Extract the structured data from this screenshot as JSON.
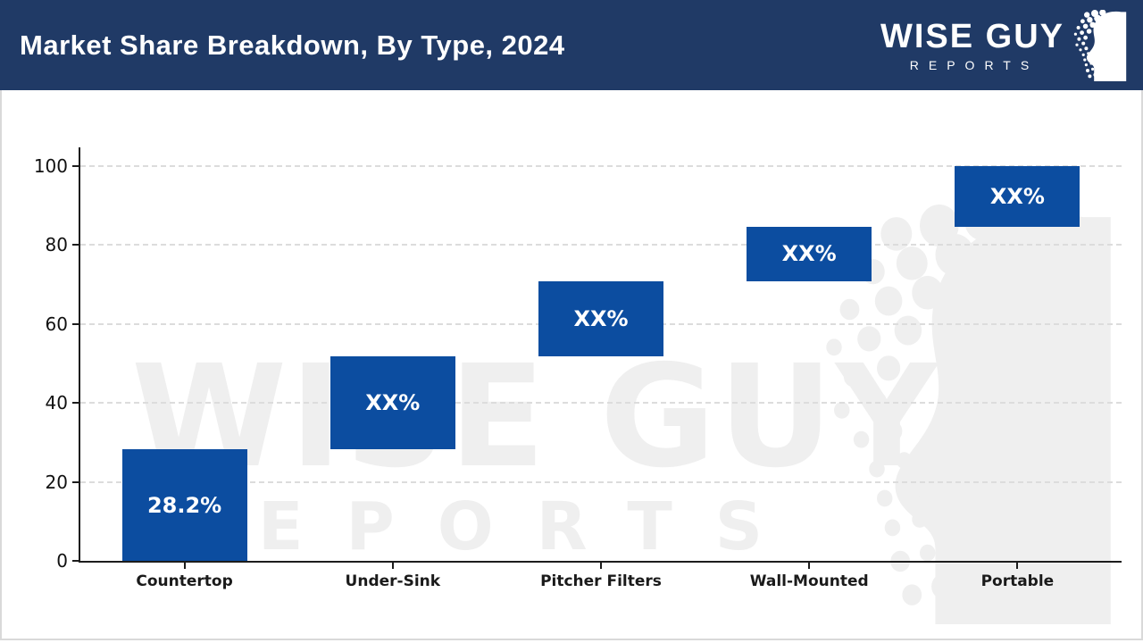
{
  "header": {
    "title": "Market Share Breakdown, By Type, 2024",
    "logo_line1": "WISE GUY",
    "logo_line2": "REPORTS"
  },
  "watermark": {
    "line1": "WISE GUY",
    "line2": "REPORTS"
  },
  "colors": {
    "header_bg": "#203a66",
    "bar": "#0c4da0",
    "axis": "#1c1c1c",
    "gridline": "#dcdcdc",
    "bar_label": "#ffffff",
    "category_label": "#1a1a1a",
    "watermark": "#efefef",
    "figure_border": "#d9d9d9"
  },
  "chart_data": {
    "type": "bar",
    "subtype": "waterfall",
    "title": "Market Share Breakdown, By Type, 2024",
    "xlabel": "",
    "ylabel": "",
    "categories": [
      "Countertop",
      "Under-Sink",
      "Pitcher Filters",
      "Wall-Mounted",
      "Portable"
    ],
    "series": [
      {
        "name": "Market Share",
        "segments": [
          [
            0,
            28.2
          ],
          [
            28.2,
            51.8
          ],
          [
            51.8,
            70.8
          ],
          [
            70.8,
            84.7
          ],
          [
            84.7,
            100
          ]
        ],
        "increments": [
          28.2,
          23.6,
          19.0,
          13.9,
          15.3
        ]
      }
    ],
    "bar_labels": [
      "28.2%",
      "XX%",
      "XX%",
      "XX%",
      "XX%"
    ],
    "y_ticks": [
      0,
      20,
      40,
      60,
      80,
      100
    ],
    "ylim": [
      0,
      104.7
    ],
    "grid": "dashed-horizontal",
    "legend": "none"
  }
}
